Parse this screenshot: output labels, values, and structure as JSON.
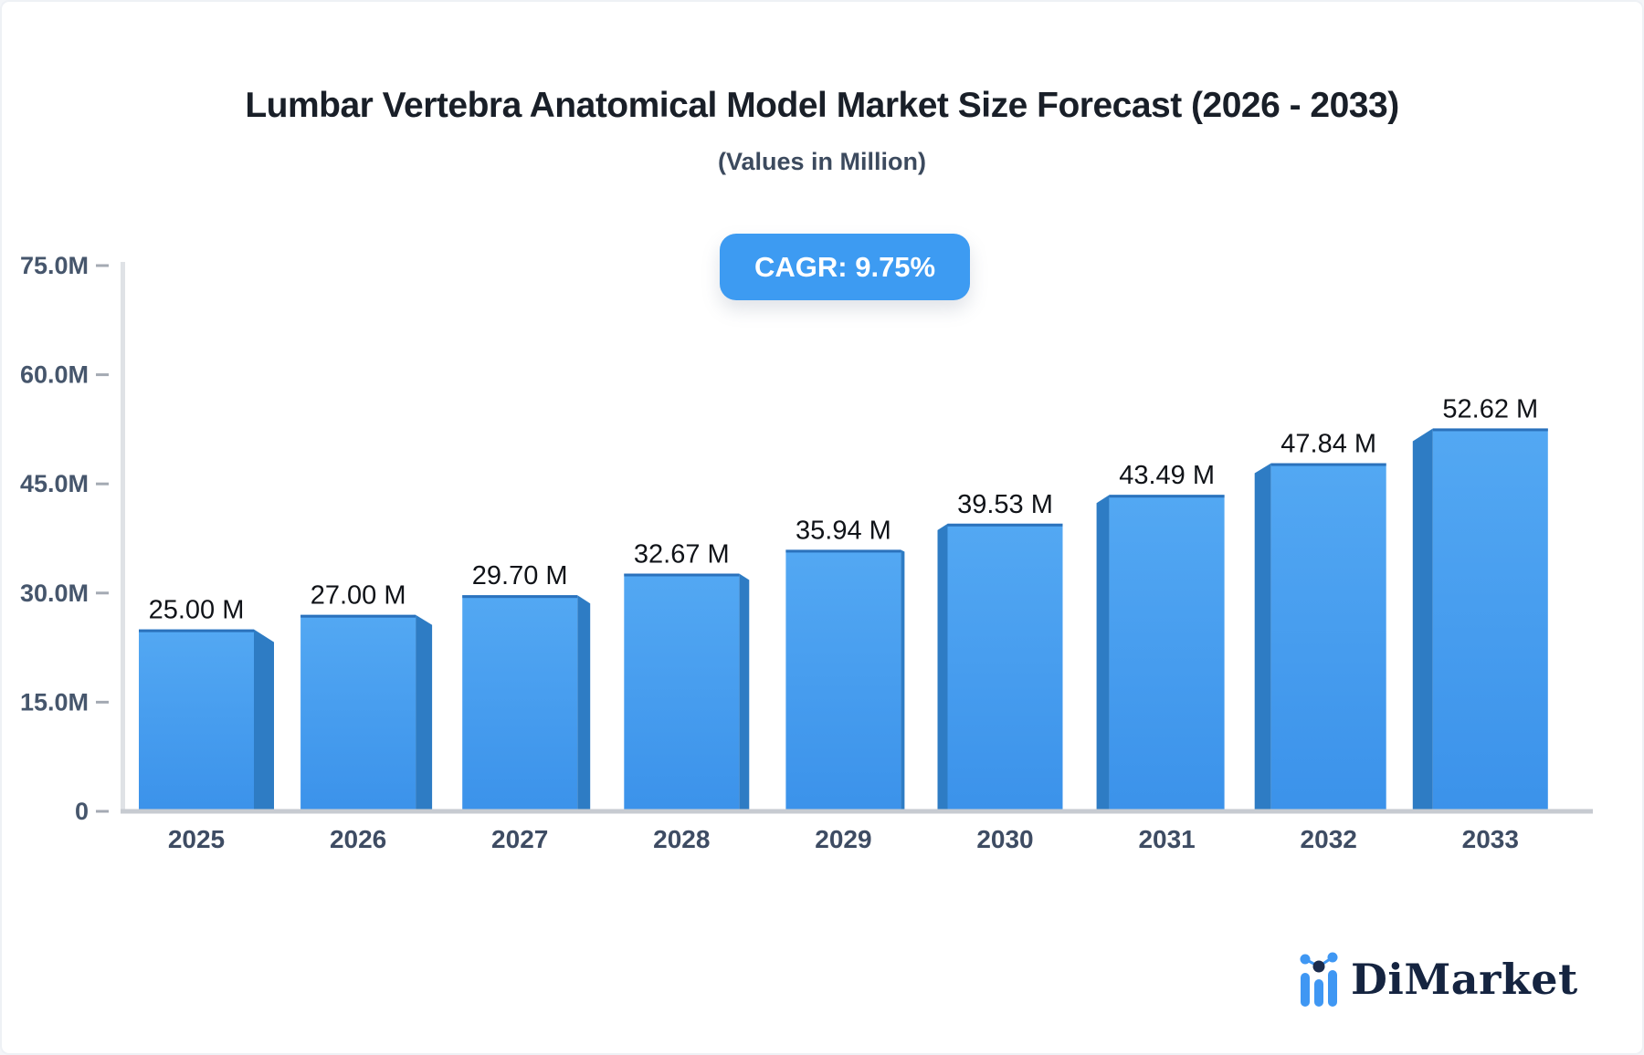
{
  "header": {
    "title": "Lumbar Vertebra Anatomical Model Market Size Forecast (2026 - 2033)",
    "subtitle": "(Values in Million)"
  },
  "badge": {
    "label": "CAGR: 9.75%",
    "background": "#3d9bf2",
    "text_color": "#ffffff"
  },
  "chart_data": {
    "type": "bar",
    "title": "Lumbar Vertebra Anatomical Model Market Size Forecast (2026 - 2033)",
    "subtitle": "(Values in Million)",
    "cagr": "9.75%",
    "unit": "M",
    "categories": [
      "2025",
      "2026",
      "2027",
      "2028",
      "2029",
      "2030",
      "2031",
      "2032",
      "2033"
    ],
    "values": [
      25.0,
      27.0,
      29.7,
      32.67,
      35.94,
      39.53,
      43.49,
      47.84,
      52.62
    ],
    "value_labels": [
      "25.00 M",
      "27.00 M",
      "29.70 M",
      "32.67 M",
      "35.94 M",
      "39.53 M",
      "43.49 M",
      "47.84 M",
      "52.62 M"
    ],
    "ylim": [
      0,
      75
    ],
    "yticks": [
      {
        "value": 0,
        "label": "0"
      },
      {
        "value": 15,
        "label": "15.0M"
      },
      {
        "value": 30,
        "label": "30.0M"
      },
      {
        "value": 45,
        "label": "45.0M"
      },
      {
        "value": 60,
        "label": "60.0M"
      },
      {
        "value": 75,
        "label": "75.0M"
      }
    ],
    "grid": "off",
    "legend": "none",
    "colors": {
      "bar_face_top": "#53a8f3",
      "bar_face_bottom": "#3b92ea",
      "bar_side": "#2e7cc4",
      "bar_top_edge": "#2b72bc",
      "axis_line": "#dfe2e6",
      "baseline": "#c7cbd1",
      "tick_mark": "#a4aab3",
      "tick_label": "#46566c",
      "category_label": "#3e4c63",
      "value_label": "#101318"
    }
  },
  "footer": {
    "brand": "DiMarket",
    "logo_icon": "bar-line-chart-icon"
  }
}
